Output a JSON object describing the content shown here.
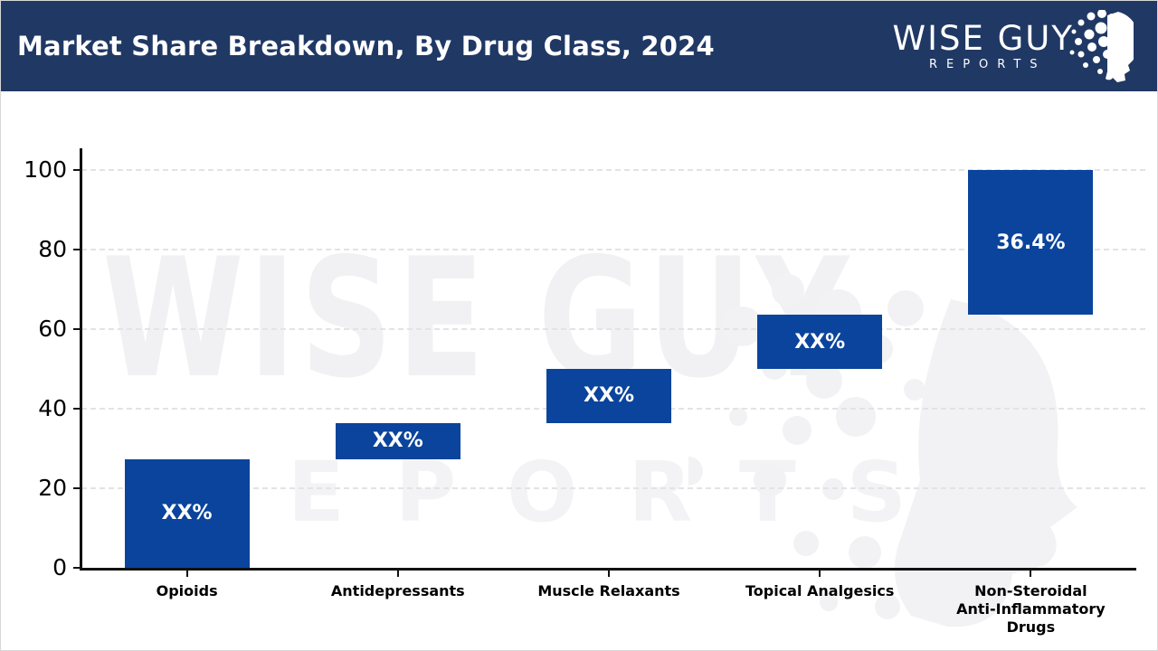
{
  "header": {
    "title": "Market Share Breakdown, By Drug Class, 2024",
    "logo": {
      "line1": "WISE GUY",
      "line2": "REPORTS"
    }
  },
  "watermark": {
    "line1": "WISE GUY",
    "line2": "REPORTS"
  },
  "chart_data": {
    "type": "bar",
    "subtype": "floating-segment-waterfall",
    "title": "Market Share Breakdown, By Drug Class, 2024",
    "categories": [
      "Opioids",
      "Antidepressants",
      "Muscle Relaxants",
      "Topical Analgesics",
      "Non-Steroidal\nAnti-Inflammatory\nDrugs"
    ],
    "bars": [
      {
        "category": "Opioids",
        "start": 0,
        "end": 27.3,
        "label": "XX%"
      },
      {
        "category": "Antidepressants",
        "start": 27.3,
        "end": 36.4,
        "label": "XX%"
      },
      {
        "category": "Muscle Relaxants",
        "start": 36.4,
        "end": 50,
        "label": "XX%"
      },
      {
        "category": "Topical Analgesics",
        "start": 50,
        "end": 63.6,
        "label": "XX%"
      },
      {
        "category": "Non-Steroidal Anti-Inflammatory Drugs",
        "start": 63.6,
        "end": 100,
        "label": "36.4%"
      }
    ],
    "ylim": [
      0,
      100
    ],
    "yticks": [
      0,
      20,
      40,
      60,
      80,
      100
    ],
    "grid": "dashed-horizontal",
    "legend": "none",
    "bar_color": "#0a449c",
    "bar_label_color": "#ffffff"
  },
  "colors": {
    "header_bg": "#203864",
    "title_text": "#ffffff",
    "bar": "#0a449c",
    "axis": "#111111",
    "gridline": "#e3e3e3",
    "watermark": "#f1f1f4",
    "page_border": "#d8d8d8"
  }
}
